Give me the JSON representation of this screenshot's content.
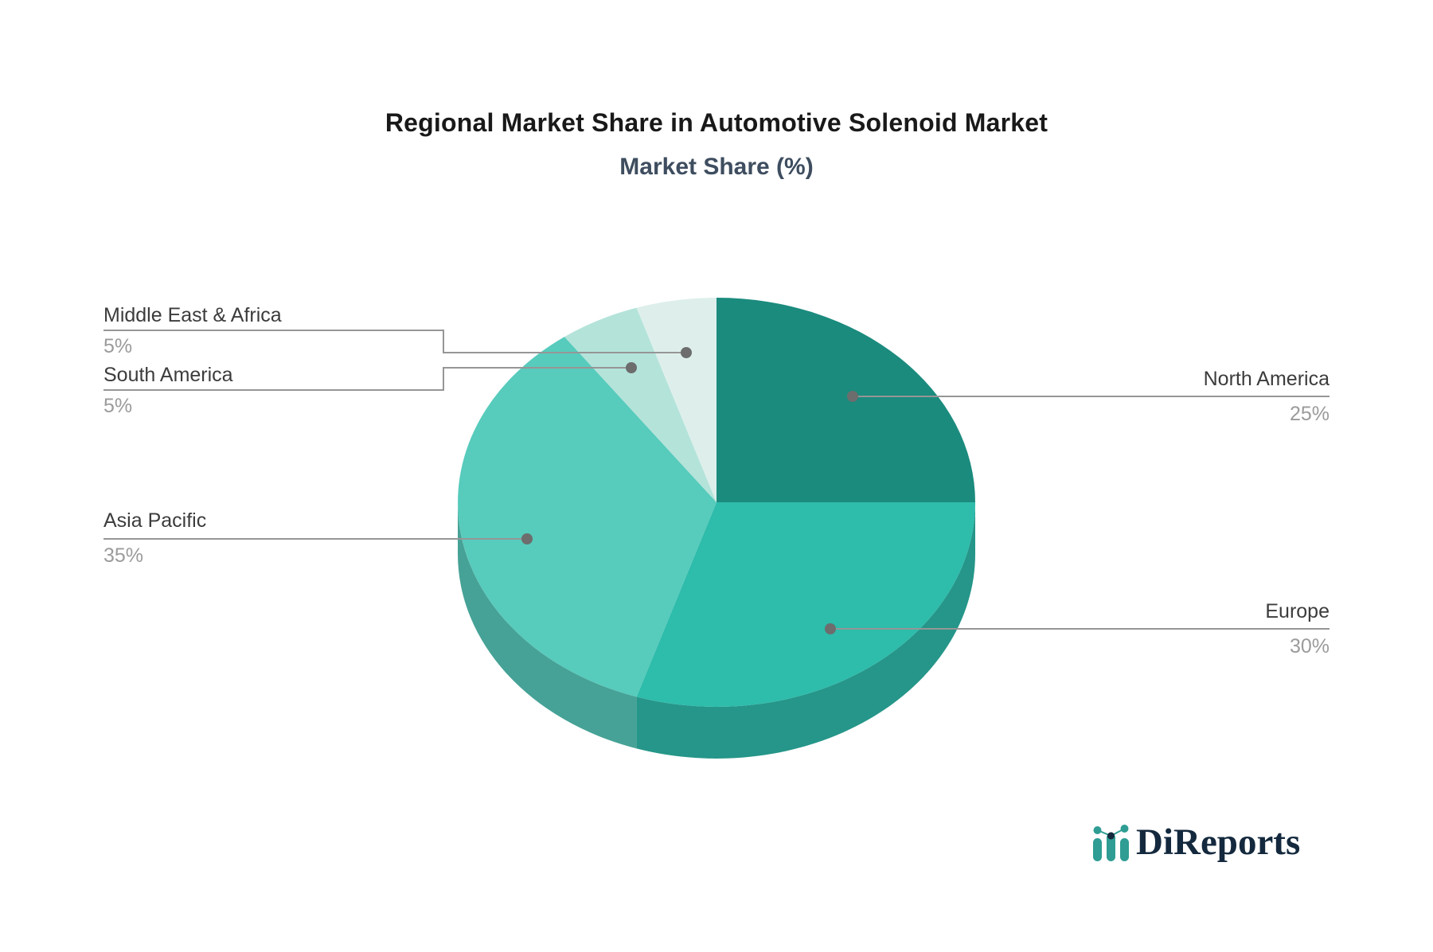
{
  "header": {
    "title": "Regional Market Share in Automotive Solenoid Market",
    "subtitle": "Market Share (%)"
  },
  "chart_data": {
    "type": "pie",
    "title": "Regional Market Share in Automotive Solenoid Market",
    "subtitle": "Market Share (%)",
    "unit": "%",
    "style": "3d",
    "direction": "clockwise",
    "start_angle": "12 o'clock",
    "labels": [
      "North America",
      "Europe",
      "Asia Pacific",
      "South America",
      "Middle East & Africa"
    ],
    "values": [
      25,
      30,
      35,
      5,
      5
    ],
    "value_labels": [
      "25%",
      "30%",
      "35%",
      "5%",
      "5%"
    ],
    "colors": [
      "#1b8b7e",
      "#2ebcab",
      "#57cbbc",
      "#b4e3da",
      "#deefeb"
    ],
    "leader_line_color": "#969696",
    "leader_dot_color": "#6d6d6d",
    "label_text_color": "#3c3c3c",
    "value_text_color": "#9b9b9b",
    "legend_position": "callouts"
  },
  "logo": {
    "text": "DiReports",
    "icon": "bar-chart-logo-icon",
    "text_color": "#14293d",
    "accent_color": "#2f9d93"
  }
}
